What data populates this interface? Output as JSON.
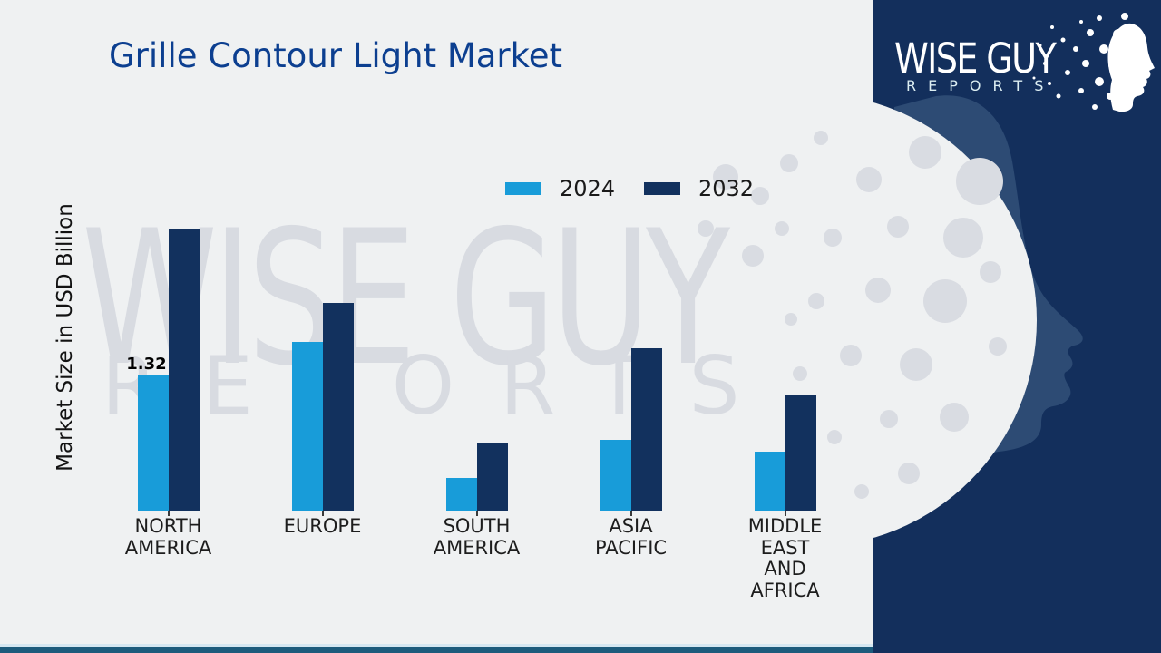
{
  "title": "Grille Contour Light Market",
  "y_axis_label": "Market Size in USD Billion",
  "logo": {
    "line1": "WISE GUY",
    "line2": "REPORTS"
  },
  "watermark": {
    "line1": "WISE GUY",
    "line2": "REPORTS"
  },
  "colors": {
    "background": "#eff1f2",
    "title_blue": "#0c3f90",
    "series_2024": "#189cd9",
    "series_2032": "#12315e",
    "brand_panel_navy": "#132f5c",
    "face_silhouette": "#2d4b74",
    "bottom_bar_teal": "#1d5b7c",
    "watermark_gray": "#d8dbe1"
  },
  "chart_data": {
    "type": "bar",
    "title": "Grille Contour Light Market",
    "xlabel": "",
    "ylabel": "Market Size in USD Billion",
    "unit": "USD Billion",
    "grid": false,
    "legend_position": "top",
    "ylim": [
      0,
      3
    ],
    "categories": [
      "NORTH AMERICA",
      "EUROPE",
      "SOUTH AMERICA",
      "ASIA PACIFIC",
      "MIDDLE EAST AND AFRICA"
    ],
    "category_label_lines": [
      [
        "NORTH",
        "AMERICA"
      ],
      [
        "EUROPE"
      ],
      [
        "SOUTH",
        "AMERICA"
      ],
      [
        "ASIA",
        "PACIFIC"
      ],
      [
        "MIDDLE",
        "EAST",
        "AND",
        "AFRICA"
      ]
    ],
    "series": [
      {
        "name": "2024",
        "color": "#189cd9",
        "values": [
          1.32,
          1.64,
          0.32,
          0.69,
          0.57
        ]
      },
      {
        "name": "2032",
        "color": "#12315e",
        "values": [
          2.74,
          2.02,
          0.66,
          1.58,
          1.13
        ]
      }
    ],
    "data_labels": [
      {
        "series": "2024",
        "category": "NORTH AMERICA",
        "text": "1.32"
      }
    ]
  }
}
